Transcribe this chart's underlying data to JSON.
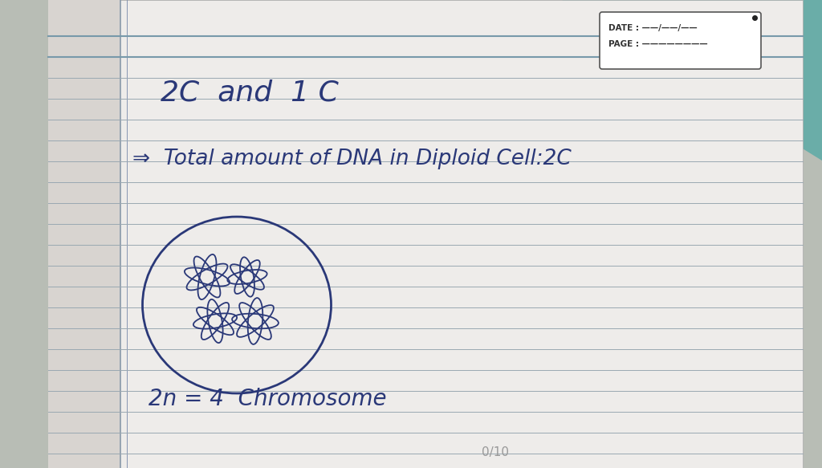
{
  "bg_left_color": "#b8bdb5",
  "bg_right_color": "#7ab5b0",
  "page_color": "#eeecea",
  "shadow_color": "#d8d4d0",
  "line_color": "#9aa8b2",
  "line_color2": "#b8c0c8",
  "ink_color": "#2a3878",
  "title_text": "2C  and  1 C",
  "line1_text": "⇒  Total amount of DNA in Diploid Cell:2C",
  "line2_text": "2n = 4  Chromosome",
  "date_text": "DATE : ——/——/——",
  "page_text": "PAGE : ————————",
  "num_lines": 20,
  "figsize": [
    10.24,
    5.83
  ],
  "dpi": 100
}
